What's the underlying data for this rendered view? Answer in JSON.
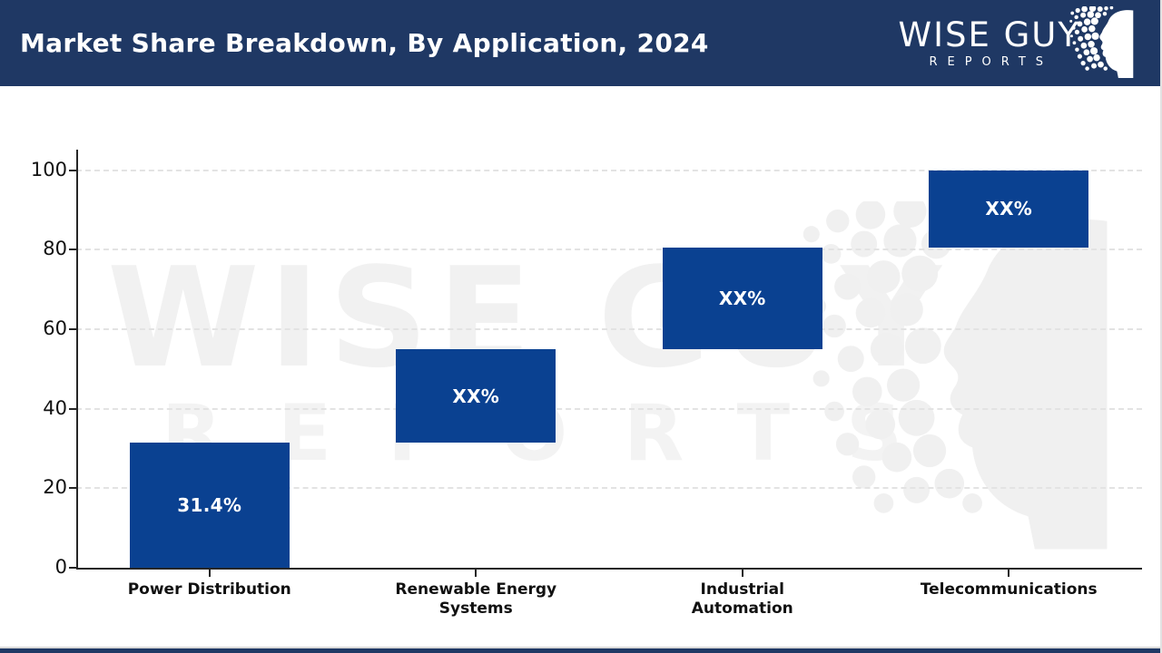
{
  "header": {
    "title": "Market Share Breakdown, By Application, 2024",
    "logo": {
      "line1": "WISE GUY",
      "line2": "REPORTS"
    }
  },
  "watermark": {
    "line1": "WISE GUY",
    "line2": "REPORTS"
  },
  "colors": {
    "header_bg": "#1f3864",
    "bar_fill": "#0a4191",
    "bar_label_text": "#ffffff",
    "gridline": "#e3e3e3",
    "axis": "#262626",
    "watermark": "#f1f1f1",
    "footer_strip": "#1f3864"
  },
  "chart_data": {
    "type": "bar",
    "subtype": "floating-waterfall",
    "title": "Market Share Breakdown, By Application, 2024",
    "xlabel": "",
    "ylabel": "",
    "ylim": [
      0,
      100
    ],
    "yticks": [
      0,
      20,
      40,
      60,
      80,
      100
    ],
    "grid": "horizontal-dashed",
    "legend": "none",
    "categories": [
      "Power Distribution",
      "Renewable Energy Systems",
      "Industrial Automation",
      "Telecommunications"
    ],
    "categories_lines": [
      [
        "Power Distribution"
      ],
      [
        "Renewable Energy",
        "Systems"
      ],
      [
        "Industrial",
        "Automation"
      ],
      [
        "Telecommunications"
      ]
    ],
    "segments": [
      {
        "category": "Power Distribution",
        "start": 0,
        "end": 31.4,
        "label": "31.4%"
      },
      {
        "category": "Renewable Energy Systems",
        "start": 31.4,
        "end": 54.9,
        "label": "XX%"
      },
      {
        "category": "Industrial Automation",
        "start": 54.9,
        "end": 80.4,
        "label": "XX%"
      },
      {
        "category": "Telecommunications",
        "start": 80.6,
        "end": 100,
        "label": "XX%"
      }
    ]
  }
}
